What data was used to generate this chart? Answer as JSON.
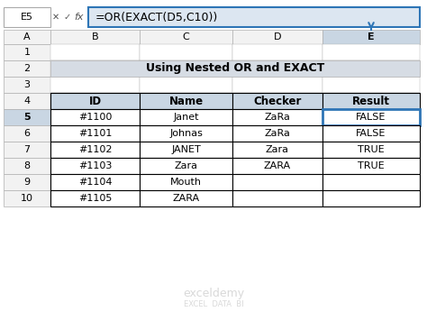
{
  "title": "Using Nested OR and EXACT",
  "title_bg": "#d6dce4",
  "formula_bar_text": "=OR(EXACT(D5,C10))",
  "cell_ref": "E5",
  "col_headers": [
    "A",
    "B",
    "C",
    "D",
    "E"
  ],
  "row_headers": [
    "1",
    "2",
    "3",
    "4",
    "5",
    "6",
    "7",
    "8",
    "9",
    "10"
  ],
  "table_headers": [
    "ID",
    "Name",
    "Checker",
    "Result"
  ],
  "table_data": [
    [
      "#1100",
      "Janet",
      "ZaRa",
      "FALSE"
    ],
    [
      "#1101",
      "Johnas",
      "ZaRa",
      "FALSE"
    ],
    [
      "#1102",
      "JANET",
      "Zara",
      "TRUE"
    ],
    [
      "#1103",
      "Zara",
      "ZARA",
      "TRUE"
    ],
    [
      "#1104",
      "Mouth",
      "",
      ""
    ],
    [
      "#1105",
      "ZARA",
      "",
      ""
    ]
  ],
  "header_bg": "#c9d6e3",
  "table_border": "#000000",
  "cell_highlight_border": "#2e75b6",
  "arrow_color": "#2e75b6",
  "formula_box_bg": "#dce6f1",
  "formula_box_border": "#2e75b6",
  "grid_line_color": "#b0b0b0",
  "bg_color": "#ffffff",
  "row_header_bg": "#f2f2f2",
  "col_header_bg": "#f2f2f2",
  "watermark_color": "#c0c0c0"
}
